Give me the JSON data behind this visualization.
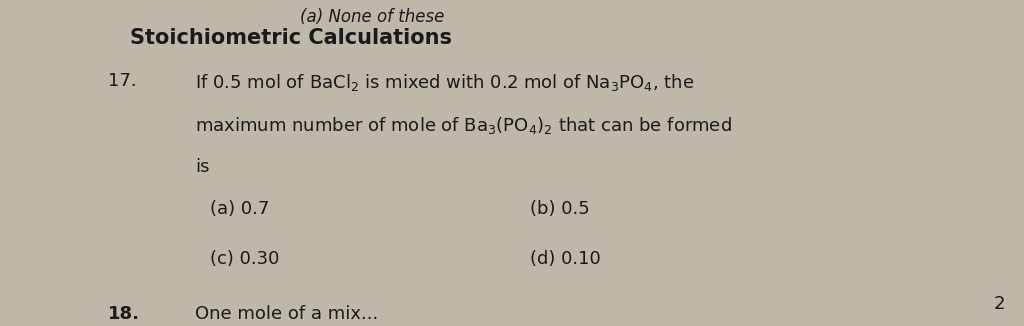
{
  "bg_color": "#bdb8aa",
  "text_color": "#1a1a1a",
  "header_top": "(a) None of these",
  "section_title": "Stoichiometric Calculations",
  "q_num": "17.",
  "line1a": "If 0.5 mol of BaCl",
  "line1b": "2",
  "line1c": " is mixed with 0.2 mol of Na",
  "line1d": "3",
  "line1e": "PO",
  "line1f": "4",
  "line1g": ", the",
  "line2a": "maximum number of mole of Ba",
  "line2b": "3",
  "line2c": "(PO",
  "line2d": "4",
  "line2e": ")",
  "line2f": "2",
  "line2g": " that can be formed",
  "line3": "is",
  "opt_a": "(a) 0.7",
  "opt_b": "(b) 0.5",
  "opt_c": "(c) 0.30",
  "opt_d": "(d) 0.10",
  "page_num": "2",
  "q18_num": "18.",
  "q18_text": "One mole of a mix..."
}
